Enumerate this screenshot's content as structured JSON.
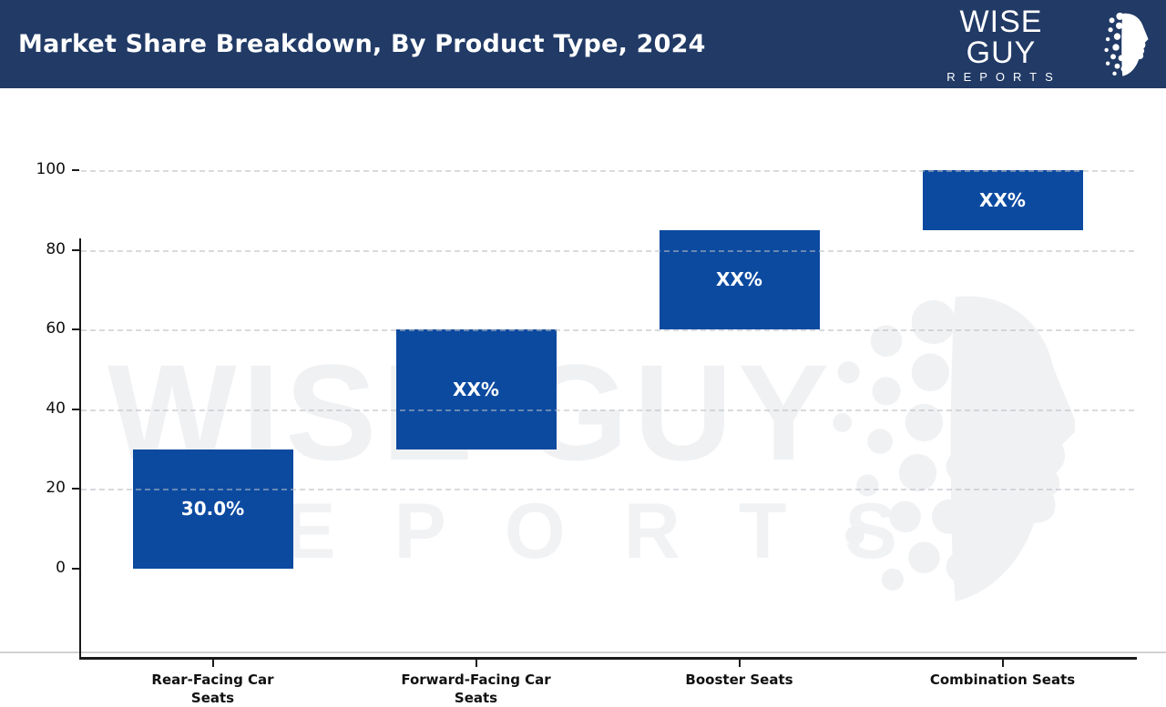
{
  "header": {
    "title": "Market Share Breakdown, By Product Type, 2024",
    "bg_color": "#213a66",
    "logo": {
      "line1": "WISE GUY",
      "line2": "REPORTS"
    }
  },
  "watermark": {
    "line1": "WISE GUY",
    "line2": "REPORTS",
    "color": "#f0f1f3",
    "head_icon": "dotted-head-profile"
  },
  "chart_data": {
    "type": "bar",
    "subtype": "waterfall",
    "title": "Market Share Breakdown, By Product Type, 2024",
    "categories": [
      "Rear-Facing Car Seats",
      "Forward-Facing Car Seats",
      "Booster Seats",
      "Combination Seats"
    ],
    "category_label_lines": [
      [
        "Rear-Facing Car",
        "Seats"
      ],
      [
        "Forward-Facing Car",
        "Seats"
      ],
      [
        "Booster Seats"
      ],
      [
        "Combination Seats"
      ]
    ],
    "series": [
      {
        "name": "Market Share %",
        "segments": [
          {
            "category": "Rear-Facing Car Seats",
            "start": 0,
            "end": 30,
            "label": "30.0%"
          },
          {
            "category": "Forward-Facing Car Seats",
            "start": 30,
            "end": 60,
            "label": "XX%"
          },
          {
            "category": "Booster Seats",
            "start": 60,
            "end": 85,
            "label": "XX%"
          },
          {
            "category": "Combination Seats",
            "start": 85,
            "end": 100,
            "label": "XX%"
          }
        ]
      }
    ],
    "bar_color": "#0c4aa0",
    "label_color": "#ffffff",
    "xlabel": "",
    "ylabel": "",
    "ylim": [
      0,
      100
    ],
    "yticks": [
      0,
      20,
      40,
      60,
      80,
      100
    ],
    "grid": "horizontal-dashed",
    "legend": "none"
  }
}
